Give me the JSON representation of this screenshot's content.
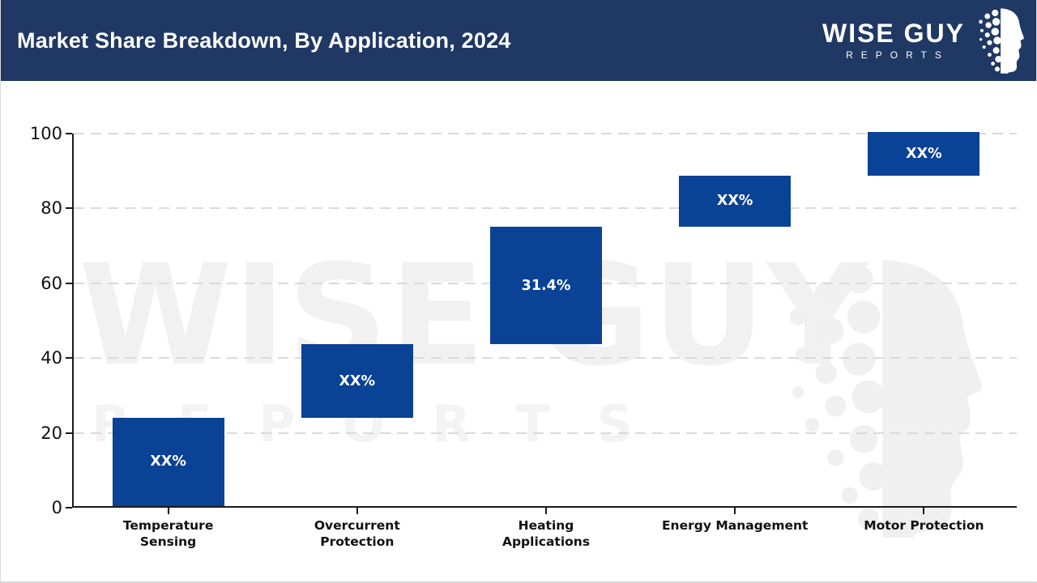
{
  "header": {
    "title": "Market Share Breakdown, By Application, 2024",
    "background": "#1f3864",
    "logo": {
      "line1": "WISE GUY",
      "line2": "REPORTS"
    }
  },
  "watermark": {
    "line1": "WISE GUY",
    "line2": "REPORTS"
  },
  "chart_data": {
    "type": "bar",
    "subtype": "floating-waterfall",
    "title": "Market Share Breakdown, By Application, 2024",
    "categories": [
      "Temperature Sensing",
      "Overcurrent Protection",
      "Heating Applications",
      "Energy Management",
      "Motor Protection"
    ],
    "bars": [
      {
        "category": "Temperature Sensing",
        "tick_lines": [
          "Temperature",
          "Sensing"
        ],
        "start": 0,
        "end": 23.6,
        "label": "XX%"
      },
      {
        "category": "Overcurrent Protection",
        "tick_lines": [
          "Overcurrent",
          "Protection"
        ],
        "start": 23.6,
        "end": 43.2,
        "label": "XX%"
      },
      {
        "category": "Heating Applications",
        "tick_lines": [
          "Heating",
          "Applications"
        ],
        "start": 43.2,
        "end": 74.6,
        "label": "31.4%"
      },
      {
        "category": "Energy Management",
        "tick_lines": [
          "Energy Management"
        ],
        "start": 74.6,
        "end": 88.4,
        "label": "XX%"
      },
      {
        "category": "Motor Protection",
        "tick_lines": [
          "Motor Protection"
        ],
        "start": 88.4,
        "end": 100,
        "label": "XX%"
      }
    ],
    "ylim": [
      0,
      100
    ],
    "yticks": [
      0,
      20,
      40,
      60,
      80,
      100
    ],
    "grid": {
      "horizontal": true,
      "style": "dashed",
      "color": "#dadada"
    },
    "bar_color": "#0a4296",
    "bar_label_color": "#ffffff",
    "axis_color": "#1a1a1a",
    "legend": "none"
  }
}
